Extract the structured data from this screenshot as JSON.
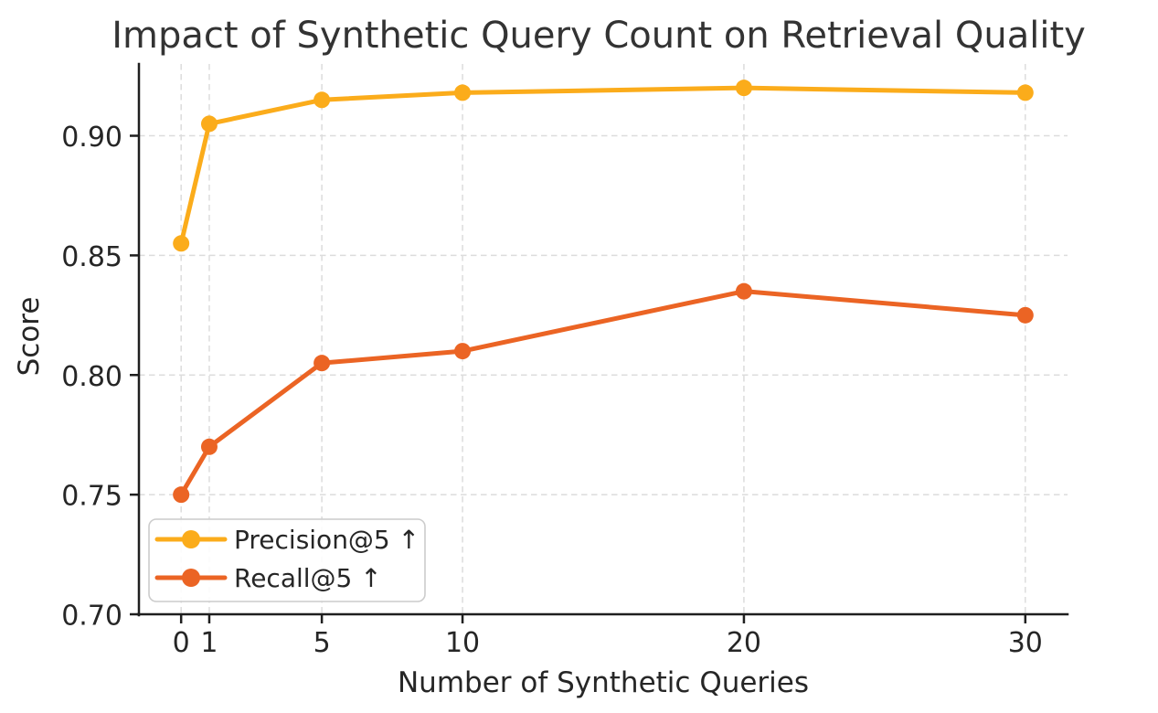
{
  "chart_data": {
    "type": "line",
    "title": "Impact of Synthetic Query Count on Retrieval Quality",
    "xlabel": "Number of Synthetic Queries",
    "ylabel": "Score",
    "x": [
      0,
      1,
      5,
      10,
      20,
      30
    ],
    "series": [
      {
        "name": "Precision@5 ↑",
        "color": "#FBAC1B",
        "values": [
          0.855,
          0.905,
          0.915,
          0.918,
          0.92,
          0.918
        ]
      },
      {
        "name": "Recall@5 ↑",
        "color": "#EB6424",
        "values": [
          0.75,
          0.77,
          0.805,
          0.81,
          0.835,
          0.825
        ]
      }
    ],
    "xticks": [
      0,
      1,
      5,
      10,
      20,
      30
    ],
    "xtick_labels": [
      "0",
      "1",
      "5",
      "10",
      "20",
      "30"
    ],
    "yticks": [
      0.7,
      0.75,
      0.8,
      0.85,
      0.9
    ],
    "ytick_labels": [
      "0.70",
      "0.75",
      "0.80",
      "0.85",
      "0.90"
    ],
    "xlim": [
      -1.5,
      31.5
    ],
    "ylim": [
      0.7,
      0.93
    ],
    "grid": true,
    "grid_style": "dashed",
    "legend_position": "lower-left",
    "legend_marker": "circle-on-line"
  },
  "style_colors": {
    "grid": "#DCDCDC",
    "spine": "#1F1F1F",
    "text": "#262626",
    "title": "#333333",
    "legend_border": "#CCCCCC",
    "background": "#FFFFFF"
  }
}
